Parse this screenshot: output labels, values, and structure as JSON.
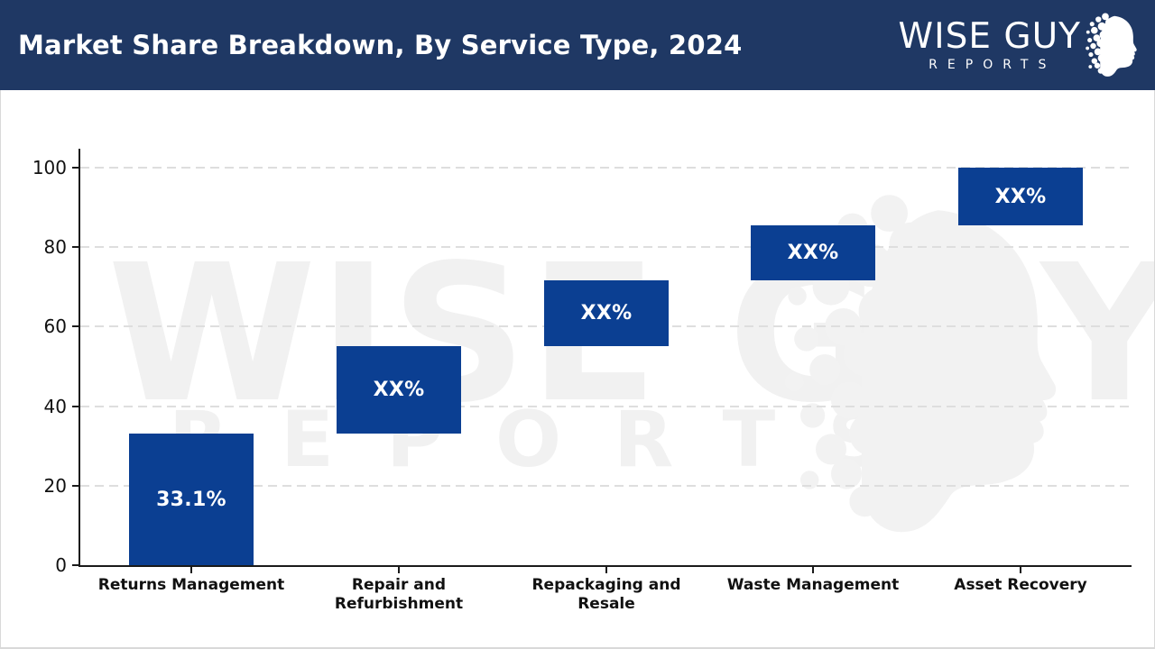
{
  "header": {
    "logo": {
      "line1": "WISE GUY",
      "line2": "REPORTS"
    }
  },
  "watermark": {
    "line1": "WISE GUY",
    "line2": "REPORTS"
  },
  "chart_data": {
    "type": "bar",
    "subtype": "waterfall",
    "title": "Market Share Breakdown, By Service Type, 2024",
    "xlabel": "",
    "ylabel": "",
    "categories": [
      "Returns Management",
      "Repair and Refurbishment",
      "Repackaging and Resale",
      "Waste Management",
      "Asset Recovery"
    ],
    "segments": [
      {
        "category": "Returns Management",
        "start": 0,
        "end": 33.1,
        "value": 33.1,
        "label": "33.1%"
      },
      {
        "category": "Repair and Refurbishment",
        "start": 33.1,
        "end": 55.1,
        "value": 22.0,
        "label": "XX%"
      },
      {
        "category": "Repackaging and Resale",
        "start": 55.1,
        "end": 71.7,
        "value": 16.6,
        "label": "XX%"
      },
      {
        "category": "Waste Management",
        "start": 71.7,
        "end": 85.4,
        "value": 13.7,
        "label": "XX%"
      },
      {
        "category": "Asset Recovery",
        "start": 85.4,
        "end": 100,
        "value": 14.6,
        "label": "XX%"
      }
    ],
    "yticks": [
      0,
      20,
      40,
      60,
      80,
      100
    ],
    "ylim": [
      0,
      100
    ],
    "grid": "horizontal-dashed",
    "legend": "none",
    "colors": {
      "bar": "#0b3f92",
      "bar_label": "#ffffff",
      "header_bg": "#1f3864",
      "axis": "#1a1a1a",
      "gridline": "#dedede",
      "watermark": "#f1f1f1"
    }
  }
}
